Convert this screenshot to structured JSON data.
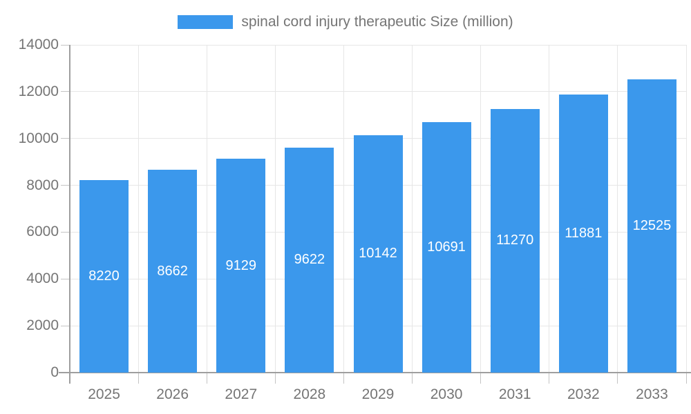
{
  "legend": {
    "label": "spinal cord injury therapeutic Size (million)",
    "swatch_color": "#3b98ec",
    "text_color": "#757575"
  },
  "chart_data": {
    "type": "bar",
    "title": "spinal cord injury therapeutic Size (million)",
    "series_name": "spinal cord injury therapeutic Size (million)",
    "categories": [
      "2025",
      "2026",
      "2027",
      "2028",
      "2029",
      "2030",
      "2031",
      "2032",
      "2033"
    ],
    "values": [
      8220,
      8662,
      9129,
      9622,
      10142,
      10691,
      11270,
      11881,
      12525
    ],
    "bar_labels": [
      "8220",
      "8662",
      "9129",
      "9622",
      "10142",
      "10691",
      "11270",
      "11881",
      "12525"
    ],
    "xlabel": "",
    "ylabel": "",
    "ylim": [
      0,
      14000
    ],
    "ytick_interval": 2000,
    "ytick_labels": [
      "0",
      "2000",
      "4000",
      "6000",
      "8000",
      "10000",
      "12000",
      "14000"
    ],
    "grid": true,
    "legend_position": "top",
    "bar_color": "#3b98ec",
    "bar_label_color": "#ffffff"
  },
  "colors": {
    "background": "#ffffff",
    "grid": "#e6e6e6",
    "axis": "#9e9e9e",
    "tick": "#c4c4c4",
    "axis_text": "#757575",
    "bar": "#3b98ec",
    "bar_label": "#ffffff"
  }
}
